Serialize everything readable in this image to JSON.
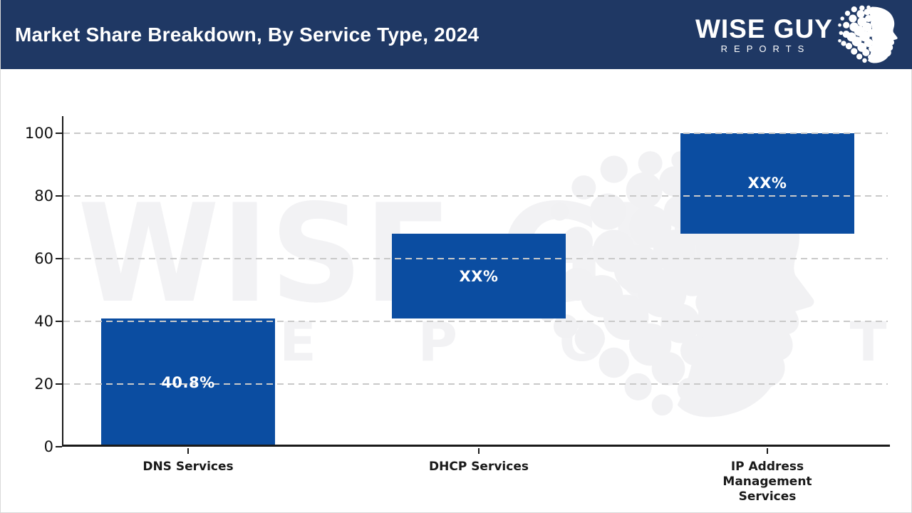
{
  "header": {
    "title": "Market Share Breakdown, By Service Type, 2024",
    "logo_primary": "WISE GUY",
    "logo_secondary": "REPORTS"
  },
  "watermark": {
    "line1": "WISE GUY",
    "line2": "R E P O R T S"
  },
  "colors": {
    "header_bg": "#1f3864",
    "bar": "#0b4da1",
    "bar_label": "#ffffff",
    "gridline": "#c9c9c9",
    "axis": "#1a1a1a",
    "watermark": "#f2f2f4"
  },
  "chart_data": {
    "type": "bar",
    "variant": "floating-waterfall",
    "title": "Market Share Breakdown, By Service Type, 2024",
    "categories": [
      "DNS Services",
      "DHCP Services",
      "IP Address Management Services"
    ],
    "bars": [
      {
        "category": "DNS Services",
        "start": 0,
        "end": 40.8,
        "value": 40.8,
        "label": "40.8%"
      },
      {
        "category": "DHCP Services",
        "start": 40.8,
        "end": 68,
        "value": 27.2,
        "label": "XX%"
      },
      {
        "category": "IP Address Management Services",
        "start": 68,
        "end": 100,
        "value": 32,
        "label": "XX%"
      }
    ],
    "xlabel": "",
    "ylabel": "",
    "ylim": [
      0,
      100
    ],
    "yticks": [
      0,
      20,
      40,
      60,
      80,
      100
    ],
    "ytick_labels": [
      "0",
      "20",
      "40",
      "60",
      "80",
      "100"
    ],
    "grid": "horizontal-dashed",
    "legend": "none"
  }
}
